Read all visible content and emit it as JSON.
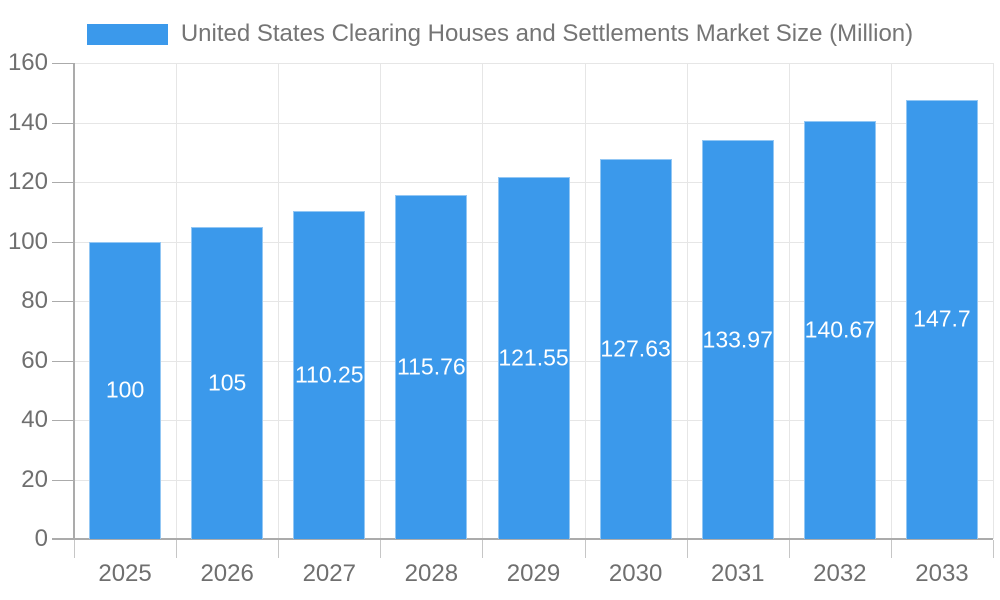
{
  "legend": {
    "label": "United States Clearing Houses and Settlements Market Size (Million)",
    "swatch_color": "#3b99eb"
  },
  "chart_data": {
    "type": "bar",
    "title": "United States Clearing Houses and Settlements Market Size (Million)",
    "categories": [
      "2025",
      "2026",
      "2027",
      "2028",
      "2029",
      "2030",
      "2031",
      "2032",
      "2033"
    ],
    "values": [
      100,
      105,
      110.25,
      115.76,
      121.55,
      127.63,
      133.97,
      140.67,
      147.7
    ],
    "value_labels": [
      "100",
      "105",
      "110.25",
      "115.76",
      "121.55",
      "127.63",
      "133.97",
      "140.67",
      "147.7"
    ],
    "xlabel": "",
    "ylabel": "",
    "ylim": [
      0,
      160
    ],
    "y_ticks": [
      0,
      20,
      40,
      60,
      80,
      100,
      120,
      140,
      160
    ],
    "grid": true,
    "legend_position": "top",
    "bar_color": "#3b99eb",
    "bar_label_color": "#ffffff",
    "grid_color": "#e6e6e6",
    "axis_color": "#ababab",
    "tick_color": "#c6c6c6",
    "label_color": "#6f6f6f",
    "legend_text_color": "#757575"
  }
}
